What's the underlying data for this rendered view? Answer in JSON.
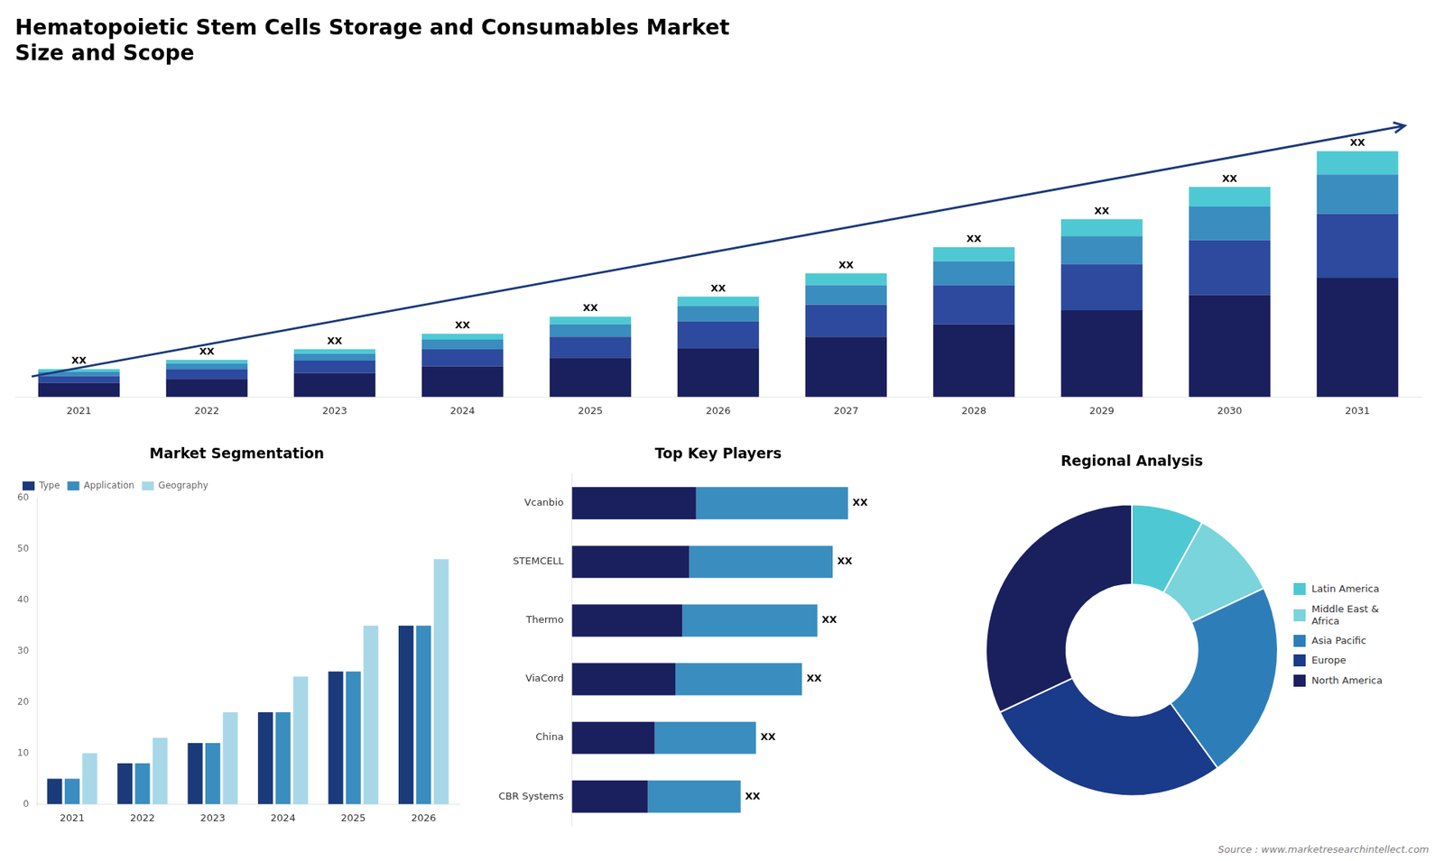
{
  "chart_data": [
    {
      "type": "bar",
      "title": "Hematopoietic Stem Cells Storage and Consumables Market\nSize and Scope",
      "categories": [
        "2021",
        "2022",
        "2023",
        "2024",
        "2025",
        "2026",
        "2027",
        "2028",
        "2029",
        "2030",
        "2031"
      ],
      "stacked": true,
      "series": [
        {
          "color": "#1a1f5e",
          "values": [
            1,
            1.3,
            1.7,
            2.2,
            2.8,
            3.5,
            4.3,
            5.2,
            6.2,
            7.3,
            8.5
          ]
        },
        {
          "color": "#2d4a9e",
          "values": [
            0.5,
            0.7,
            0.9,
            1.2,
            1.5,
            1.9,
            2.3,
            2.8,
            3.3,
            3.9,
            4.6
          ]
        },
        {
          "color": "#3a8dbf",
          "values": [
            0.3,
            0.4,
            0.5,
            0.7,
            0.9,
            1.1,
            1.4,
            1.7,
            2.0,
            2.4,
            2.8
          ]
        },
        {
          "color": "#4ec9d4",
          "values": [
            0.2,
            0.25,
            0.32,
            0.42,
            0.54,
            0.68,
            0.84,
            1.0,
            1.2,
            1.42,
            1.66
          ]
        }
      ],
      "ylim": [
        0,
        22.828
      ],
      "tick_labels": "x",
      "grid": false,
      "annotations": [
        "XX",
        "XX",
        "XX",
        "XX",
        "XX",
        "XX",
        "XX",
        "XX",
        "XX",
        "XX",
        "XX"
      ]
    },
    {
      "type": "bar",
      "title": "Market Segmentation",
      "categories": [
        "2021",
        "2022",
        "2023",
        "2024",
        "2025",
        "2026"
      ],
      "series": [
        {
          "name": "Type",
          "color": "#1a3a7a",
          "values": [
            5,
            8,
            12,
            18,
            26,
            35
          ]
        },
        {
          "name": "Application",
          "color": "#3a8dbf",
          "values": [
            5,
            8,
            12,
            18,
            26,
            35
          ]
        },
        {
          "name": "Geography",
          "color": "#a8d8e8",
          "values": [
            10,
            13,
            18,
            25,
            35,
            48
          ]
        }
      ],
      "ylim": [
        0,
        60
      ],
      "yticks": [
        0,
        10,
        20,
        30,
        40,
        50,
        60
      ],
      "grid": false,
      "legend": "top-left"
    },
    {
      "type": "bar",
      "orientation": "horizontal",
      "stacked": true,
      "title": "Top Key Players",
      "categories": [
        "Vcanbio",
        "STEMCELL",
        "Thermo",
        "ViaCord",
        "China",
        "CBR Systems"
      ],
      "series": [
        {
          "color": "#1a1f5e",
          "values": [
            4.05,
            3.825,
            3.6,
            3.375,
            2.7,
            2.475
          ]
        },
        {
          "color": "#3a8dbf",
          "values": [
            4.95,
            4.675,
            4.4,
            4.125,
            3.3,
            3.025
          ]
        }
      ],
      "xlim": [
        0,
        12
      ],
      "tick_labels": "y",
      "grid": false,
      "annotations": [
        "XX",
        "XX",
        "XX",
        "XX",
        "XX",
        "XX"
      ]
    },
    {
      "type": "doughnut",
      "title": "Regional Analysis",
      "categories": [
        "Latin America",
        "Middle East &\nAfrica",
        "Asia Pacific",
        "Europe",
        "North America"
      ],
      "values": [
        0.08,
        0.1,
        0.22,
        0.28,
        0.32
      ],
      "colors": [
        "#4ec9d4",
        "#7ad4dc",
        "#2d7eb8",
        "#1a3a8a",
        "#1a1f5e"
      ],
      "legend": "right",
      "annotations": [
        "Source : www.marketresearchintellect.com"
      ]
    }
  ]
}
